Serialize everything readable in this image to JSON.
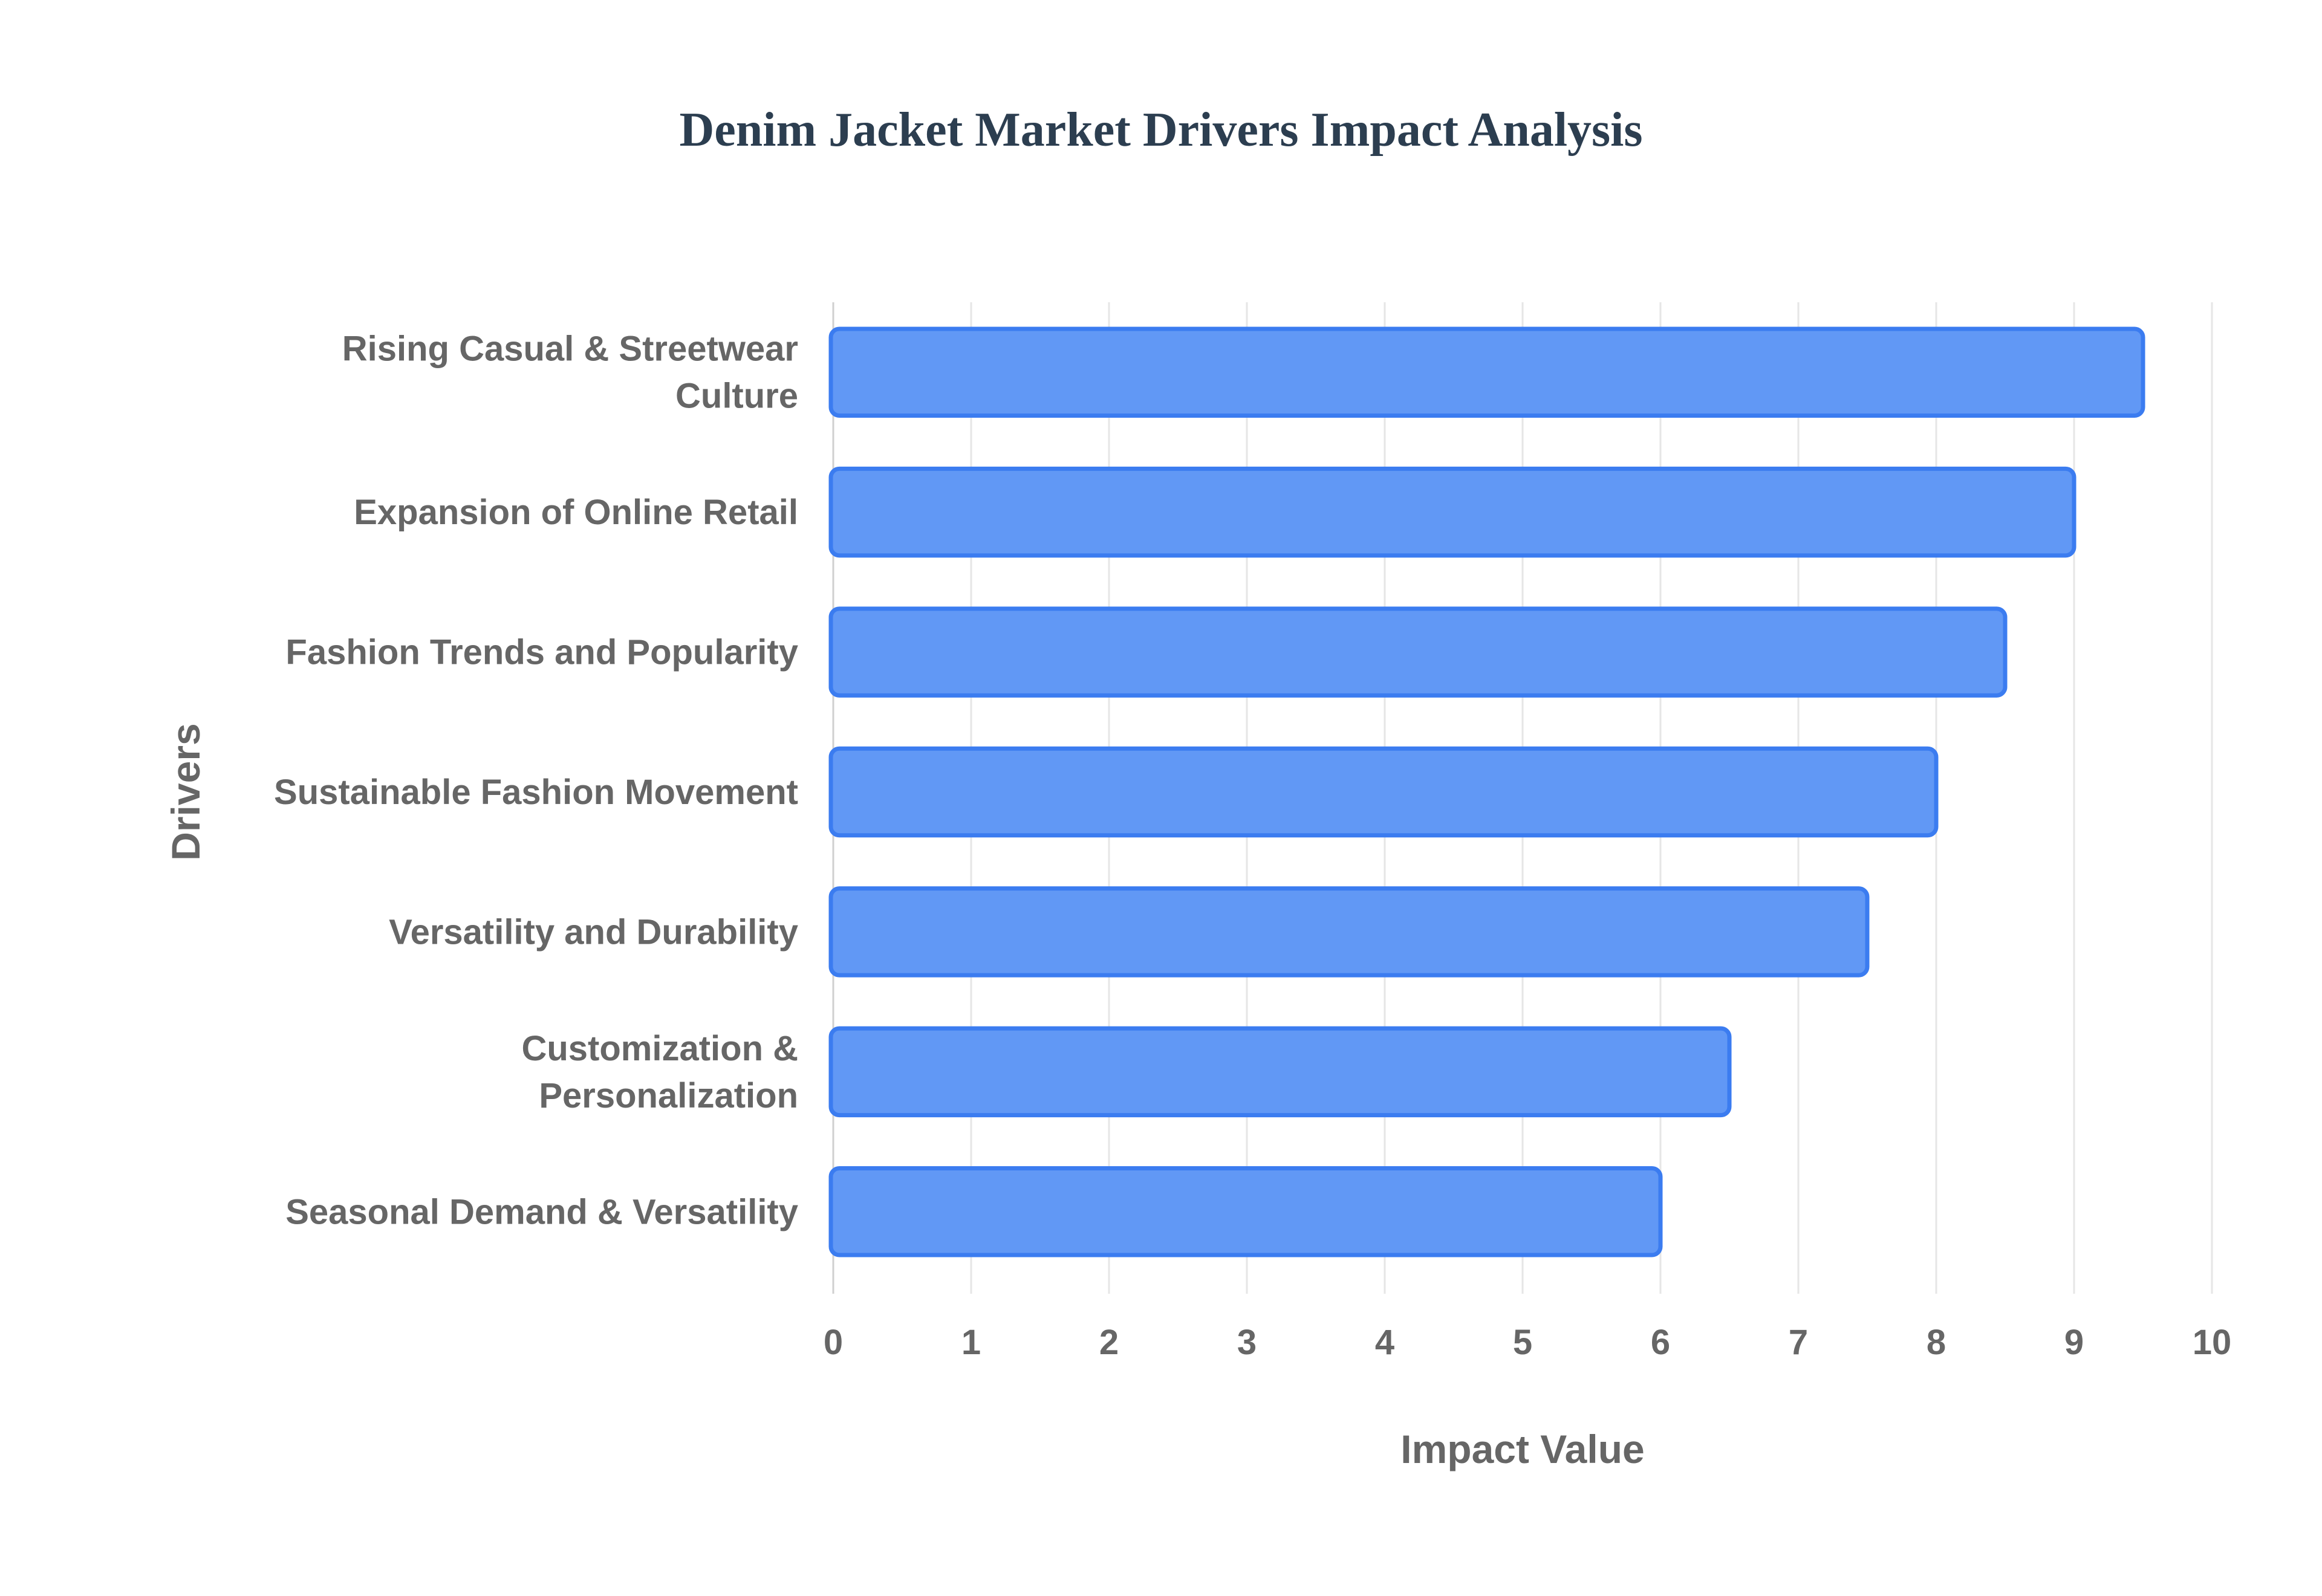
{
  "chart_data": {
    "type": "bar",
    "orientation": "horizontal",
    "title": "Denim Jacket Market Drivers Impact Analysis",
    "xlabel": "Impact Value",
    "ylabel": "Drivers",
    "xlim": [
      0,
      10
    ],
    "xticks": [
      0,
      1,
      2,
      3,
      4,
      5,
      6,
      7,
      8,
      9,
      10
    ],
    "categories": [
      [
        "Rising Casual & Streetwear",
        "Culture"
      ],
      [
        "Expansion of Online Retail"
      ],
      [
        "Fashion Trends and Popularity"
      ],
      [
        "Sustainable Fashion Movement"
      ],
      [
        "Versatility and Durability"
      ],
      [
        "Customization &",
        "Personalization"
      ],
      [
        "Seasonal Demand & Versatility"
      ]
    ],
    "values": [
      9.5,
      9,
      8.5,
      8,
      7.5,
      6.5,
      6
    ],
    "bar_color": "#6198f5",
    "bar_border_color": "#3b7cf0",
    "grid": true,
    "legend": "none"
  }
}
